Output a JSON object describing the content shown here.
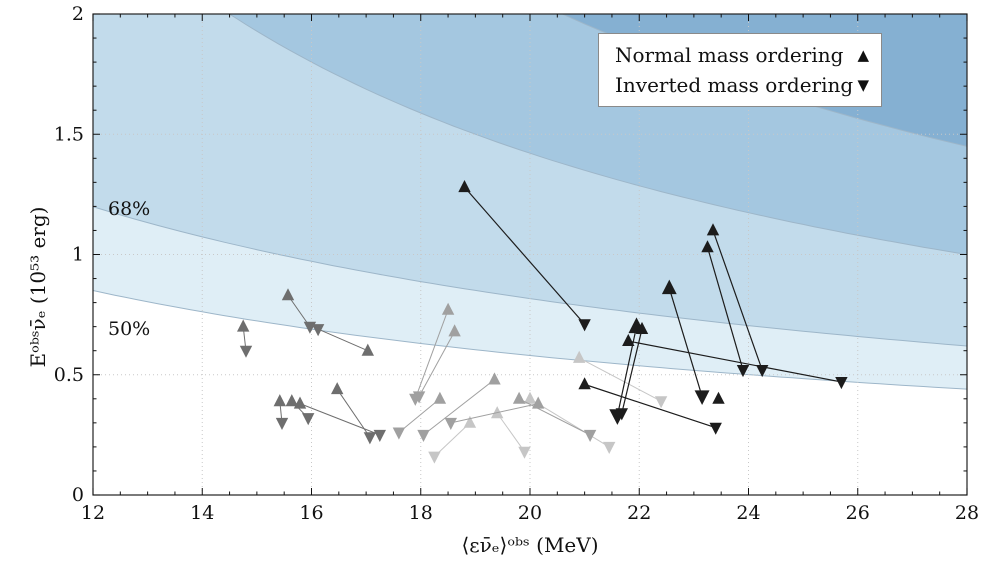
{
  "chart_data": {
    "type": "scatter",
    "title": "",
    "xlabel": "⟨εν̄ₑ⟩ᵒᵇˢ (MeV)",
    "ylabel": "Eᵒᵇˢν̄ₑ (10⁵³ erg)",
    "xlim": [
      12,
      28
    ],
    "ylim": [
      0,
      2
    ],
    "x_ticks": [
      12,
      14,
      16,
      18,
      20,
      22,
      24,
      26,
      28
    ],
    "y_ticks": [
      0,
      0.5,
      1,
      1.5,
      2
    ],
    "y_tick_labels": [
      "0",
      "0.5",
      "1",
      "1.5",
      "2"
    ],
    "x_minor_step": 0.5,
    "y_minor_step": 0.1,
    "grid": "dotted",
    "legend": {
      "position": "top-right",
      "entries": [
        {
          "label": "Normal mass ordering",
          "marker": "triangle-up",
          "glyph": "▲"
        },
        {
          "label": "Inverted mass ordering",
          "marker": "triangle-down",
          "glyph": "▼"
        }
      ]
    },
    "region_labels": [
      {
        "text": "68%",
        "x": 12.6,
        "y": 1.18
      },
      {
        "text": "50%",
        "x": 12.6,
        "y": 0.68
      }
    ],
    "confidence_bands": [
      {
        "label": "50%",
        "C": 14.6,
        "a": -5.17,
        "fill": "#dfeef6"
      },
      {
        "label": "68%",
        "C": 20.5,
        "a": -5.1,
        "fill": "#c2dbeb"
      },
      {
        "label": "",
        "C": 27.0,
        "a": 1.0,
        "fill": "#a4c7e0"
      },
      {
        "label": "",
        "C": 39.0,
        "a": 1.09,
        "fill": "#85b0d2"
      }
    ],
    "pairs": [
      {
        "normal": [
          20.0,
          0.4
        ],
        "inverted": [
          21.45,
          0.2
        ],
        "shade": "lighter"
      },
      {
        "normal": [
          19.4,
          0.34
        ],
        "inverted": [
          19.9,
          0.18
        ],
        "shade": "lighter"
      },
      {
        "normal": [
          18.9,
          0.3
        ],
        "inverted": [
          18.25,
          0.16
        ],
        "shade": "lighter"
      },
      {
        "normal": [
          20.9,
          0.57
        ],
        "inverted": [
          22.4,
          0.39
        ],
        "shade": "lighter"
      },
      {
        "normal": [
          18.5,
          0.77
        ],
        "inverted": [
          17.9,
          0.4
        ],
        "shade": "light"
      },
      {
        "normal": [
          18.62,
          0.68
        ],
        "inverted": [
          17.97,
          0.41
        ],
        "shade": "light"
      },
      {
        "normal": [
          19.35,
          0.48
        ],
        "inverted": [
          18.05,
          0.25
        ],
        "shade": "light"
      },
      {
        "normal": [
          19.8,
          0.4
        ],
        "inverted": [
          21.1,
          0.25
        ],
        "shade": "light"
      },
      {
        "normal": [
          20.15,
          0.38
        ],
        "inverted": [
          18.55,
          0.3
        ],
        "shade": "light"
      },
      {
        "normal": [
          18.35,
          0.4
        ],
        "inverted": [
          17.6,
          0.26
        ],
        "shade": "light"
      },
      {
        "normal": [
          14.75,
          0.7
        ],
        "inverted": [
          14.8,
          0.6
        ],
        "shade": "medium"
      },
      {
        "normal": [
          15.57,
          0.83
        ],
        "inverted": [
          15.97,
          0.7
        ],
        "shade": "medium"
      },
      {
        "normal": [
          17.03,
          0.6
        ],
        "inverted": [
          16.12,
          0.69
        ],
        "shade": "medium"
      },
      {
        "normal": [
          16.47,
          0.44
        ],
        "inverted": [
          17.07,
          0.24
        ],
        "shade": "medium"
      },
      {
        "normal": [
          15.42,
          0.39
        ],
        "inverted": [
          15.46,
          0.3
        ],
        "shade": "medium"
      },
      {
        "normal": [
          15.64,
          0.39
        ],
        "inverted": [
          15.94,
          0.32
        ],
        "shade": "medium"
      },
      {
        "normal": [
          15.79,
          0.38
        ],
        "inverted": [
          17.25,
          0.25
        ],
        "shade": "medium"
      },
      {
        "normal": [
          18.8,
          1.28
        ],
        "inverted": [
          21.0,
          0.71
        ],
        "shade": "dark"
      },
      {
        "normal": [
          23.35,
          1.1
        ],
        "inverted": [
          24.25,
          0.52
        ],
        "shade": "dark"
      },
      {
        "normal": [
          23.25,
          1.03
        ],
        "inverted": [
          23.9,
          0.52
        ],
        "shade": "dark"
      },
      {
        "normal": [
          22.55,
          0.86
        ],
        "inverted": [
          23.15,
          0.41
        ],
        "shade": "dark",
        "size": 1.2
      },
      {
        "normal": [
          21.95,
          0.7
        ],
        "inverted": [
          21.6,
          0.33
        ],
        "shade": "dark",
        "size": 1.3
      },
      {
        "normal": [
          22.05,
          0.69
        ],
        "inverted": [
          21.68,
          0.34
        ],
        "shade": "dark"
      },
      {
        "normal": [
          21.8,
          0.64
        ],
        "inverted": [
          25.7,
          0.47
        ],
        "shade": "dark"
      },
      {
        "normal": [
          21.0,
          0.46
        ],
        "inverted": [
          23.4,
          0.28
        ],
        "shade": "dark"
      }
    ],
    "extra_points": [
      {
        "type": "normal",
        "x": 23.45,
        "y": 0.4,
        "shade": "dark"
      }
    ],
    "colors": {
      "band_stroke": "#9db6c9",
      "grid": "#c8c8c8",
      "frame": "#222222",
      "shades": {
        "dark": "#1c1c1c",
        "medium": "#6e6e6e",
        "light": "#a0a0a0",
        "lighter": "#c6c6c6"
      }
    }
  }
}
